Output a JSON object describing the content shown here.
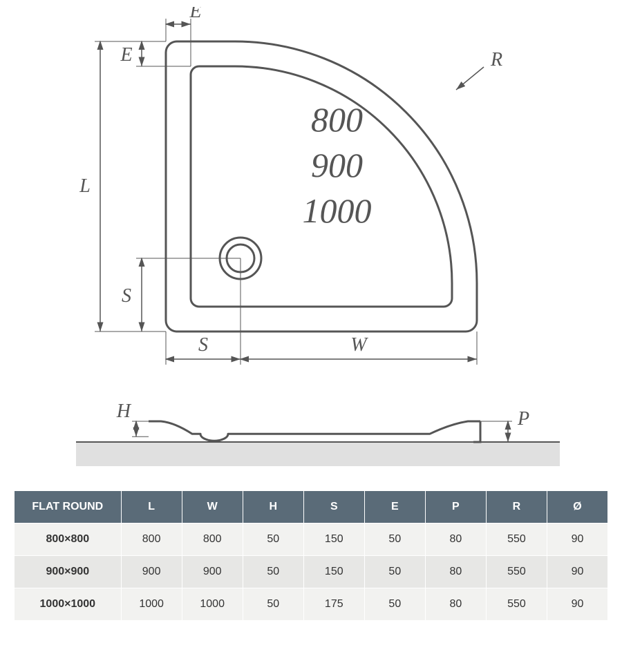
{
  "diagram": {
    "labels": {
      "E_top": "E",
      "E_left": "E",
      "L": "L",
      "S_left": "S",
      "S_bottom": "S",
      "W": "W",
      "R": "R",
      "H": "H",
      "P": "P"
    },
    "sizes": [
      "800",
      "900",
      "1000"
    ],
    "colors": {
      "line": "#555555",
      "text": "#555555",
      "ground_fill": "#e0e0e0",
      "background": "#ffffff"
    },
    "stroke_width": {
      "shape": 3,
      "dim": 1.5,
      "dim_ext": 1,
      "ground_line": 2
    },
    "font": {
      "dim_label_size": 28,
      "big_size": 50
    }
  },
  "table": {
    "header_bg": "#5a6b78",
    "row_odd_bg": "#f2f2f0",
    "row_even_bg": "#e7e7e5",
    "columns": [
      "FLAT ROUND",
      "L",
      "W",
      "H",
      "S",
      "E",
      "P",
      "R",
      "Ø"
    ],
    "col_widths": [
      "18%",
      "10.25%",
      "10.25%",
      "10.25%",
      "10.25%",
      "10.25%",
      "10.25%",
      "10.25%",
      "10.25%"
    ],
    "rows": [
      [
        "800×800",
        "800",
        "800",
        "50",
        "150",
        "50",
        "80",
        "550",
        "90"
      ],
      [
        "900×900",
        "900",
        "900",
        "50",
        "150",
        "50",
        "80",
        "550",
        "90"
      ],
      [
        "1000×1000",
        "1000",
        "1000",
        "50",
        "175",
        "50",
        "80",
        "550",
        "90"
      ]
    ]
  }
}
